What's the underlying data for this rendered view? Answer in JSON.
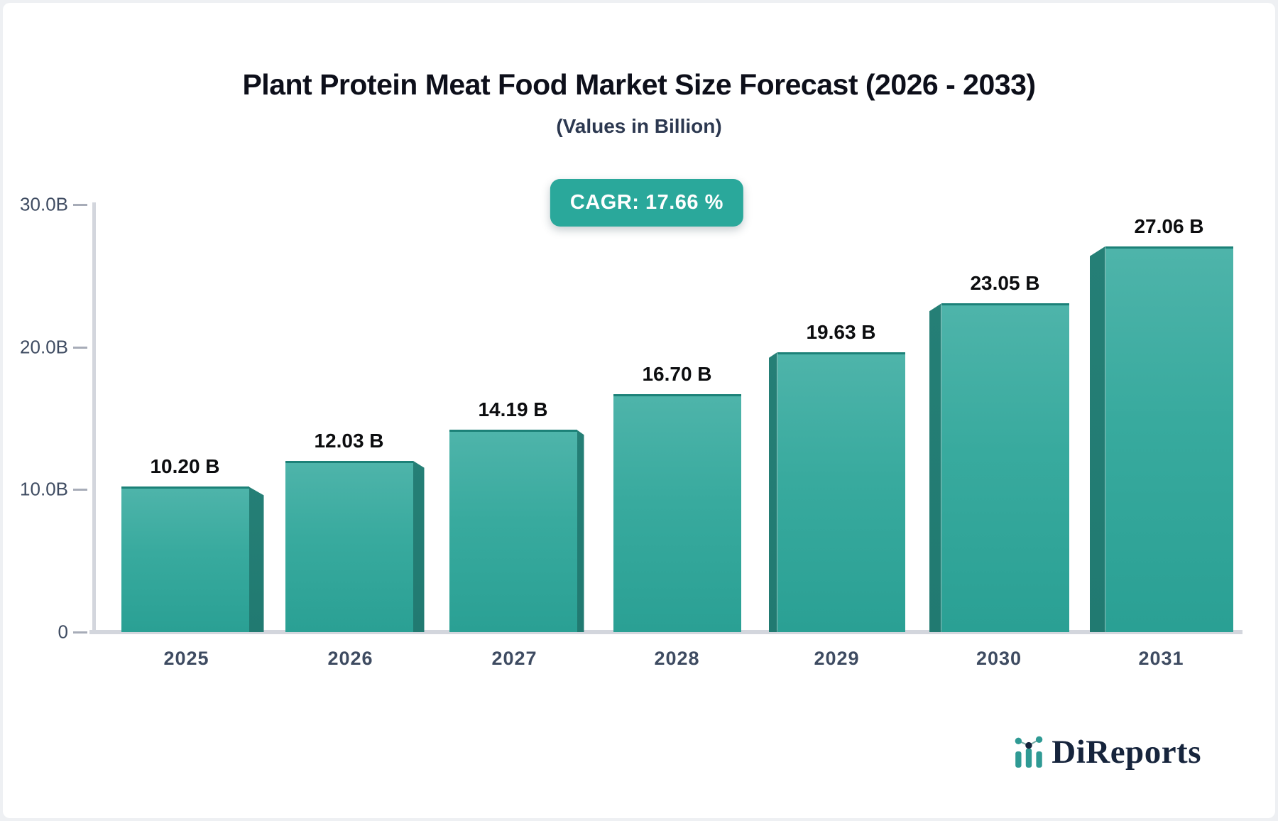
{
  "header": {
    "title": "Plant Protein Meat Food Market Size Forecast (2026 - 2033)",
    "subtitle": "(Values in Billion)"
  },
  "badge": {
    "label": "CAGR: 17.66 %"
  },
  "chart_data": {
    "type": "bar",
    "title": "Plant Protein Meat Food Market Size Forecast (2026 - 2033)",
    "subtitle": "(Values in Billion)",
    "categories": [
      "2025",
      "2026",
      "2027",
      "2028",
      "2029",
      "2030",
      "2031"
    ],
    "values": [
      10.2,
      12.03,
      14.19,
      16.7,
      19.63,
      23.05,
      27.06
    ],
    "value_labels": [
      "10.20 B",
      "12.03 B",
      "14.19 B",
      "16.70 B",
      "19.63 B",
      "23.05 B",
      "27.06 B"
    ],
    "unit": "B",
    "cagr": "17.66 %",
    "ylim": [
      0,
      30
    ],
    "yticks": [
      {
        "value": 30,
        "label": "30.0B"
      },
      {
        "value": 20,
        "label": "20.0B"
      },
      {
        "value": 10,
        "label": "10.0B"
      },
      {
        "value": 0,
        "label": "0"
      }
    ],
    "grid": "off",
    "legend": "none",
    "bar_color_top": "#4eb4aa",
    "bar_color_bottom": "#2aa094",
    "bar_side_color": "#217a71",
    "bar_edge_color": "#1c8178",
    "axis_color": "#d3d6dd",
    "label_color": "#3e4b61",
    "badge_color": "#2aa89b"
  },
  "logo": {
    "text": "DiReports"
  }
}
